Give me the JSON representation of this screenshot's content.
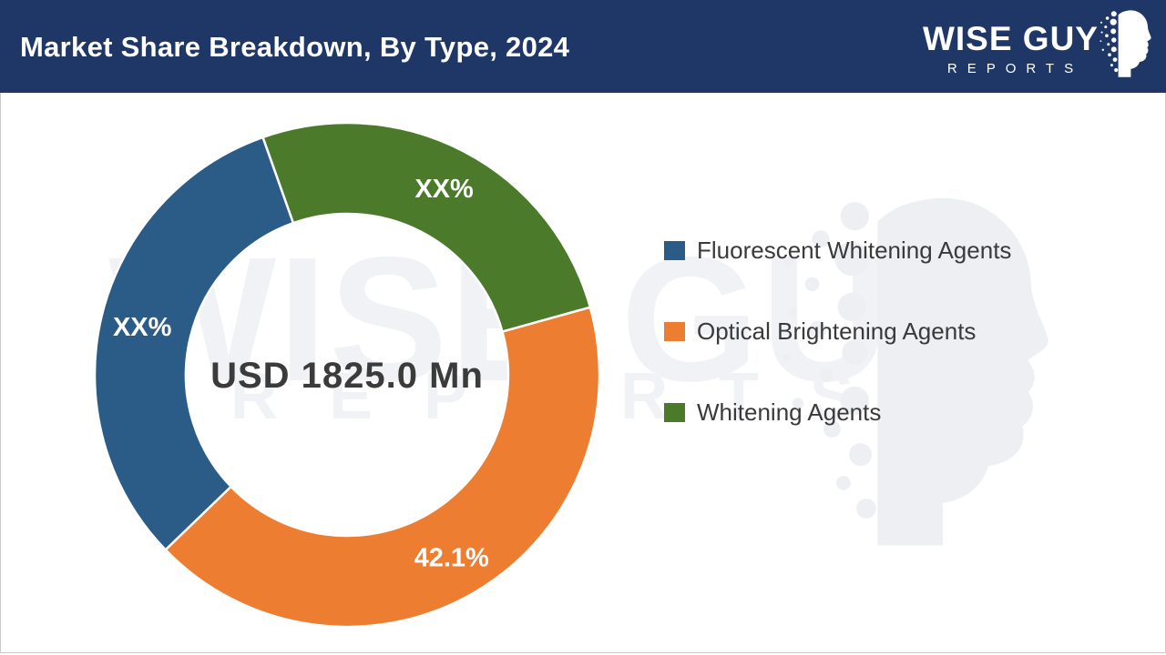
{
  "header": {
    "title": "Market Share Breakdown, By Type, 2024",
    "logo": {
      "wordmark": "WISE GUY",
      "subtext": "REPORTS"
    }
  },
  "watermark": {
    "wordmark": "WISE GUY",
    "subtext": "REPORTS"
  },
  "chart_data": {
    "type": "pie",
    "subtype": "donut",
    "title": "Market Share Breakdown, By Type, 2024",
    "center_label": "USD 1825.0 Mn",
    "total": {
      "value": 1825.0,
      "units": "USD Mn"
    },
    "start_angle_deg": -19.5,
    "direction": "clockwise",
    "inner_radius_ratio": 0.64,
    "legend_position": "right",
    "segments": [
      {
        "name": "Whitening Agents",
        "display_label": "XX%",
        "value_pct": 26.1,
        "color": "#4b7a2b"
      },
      {
        "name": "Optical Brightening Agents",
        "display_label": "42.1%",
        "value_pct": 42.1,
        "color": "#ed7d31"
      },
      {
        "name": "Fluorescent Whitening Agents",
        "display_label": "XX%",
        "value_pct": 31.8,
        "color": "#2b5c87"
      }
    ]
  },
  "legend": {
    "items": [
      {
        "label": "Fluorescent Whitening Agents",
        "color": "#2b5c87"
      },
      {
        "label": "Optical Brightening Agents",
        "color": "#ed7d31"
      },
      {
        "label": "Whitening Agents",
        "color": "#4b7a2b"
      }
    ]
  },
  "colors": {
    "header_bg": "#1f3766",
    "center_text": "#3b3b3b",
    "legend_text": "#3a3a3a",
    "watermark": "#f1f2f5",
    "border": "#cbcbcb",
    "segment_gap": "#ffffff"
  }
}
